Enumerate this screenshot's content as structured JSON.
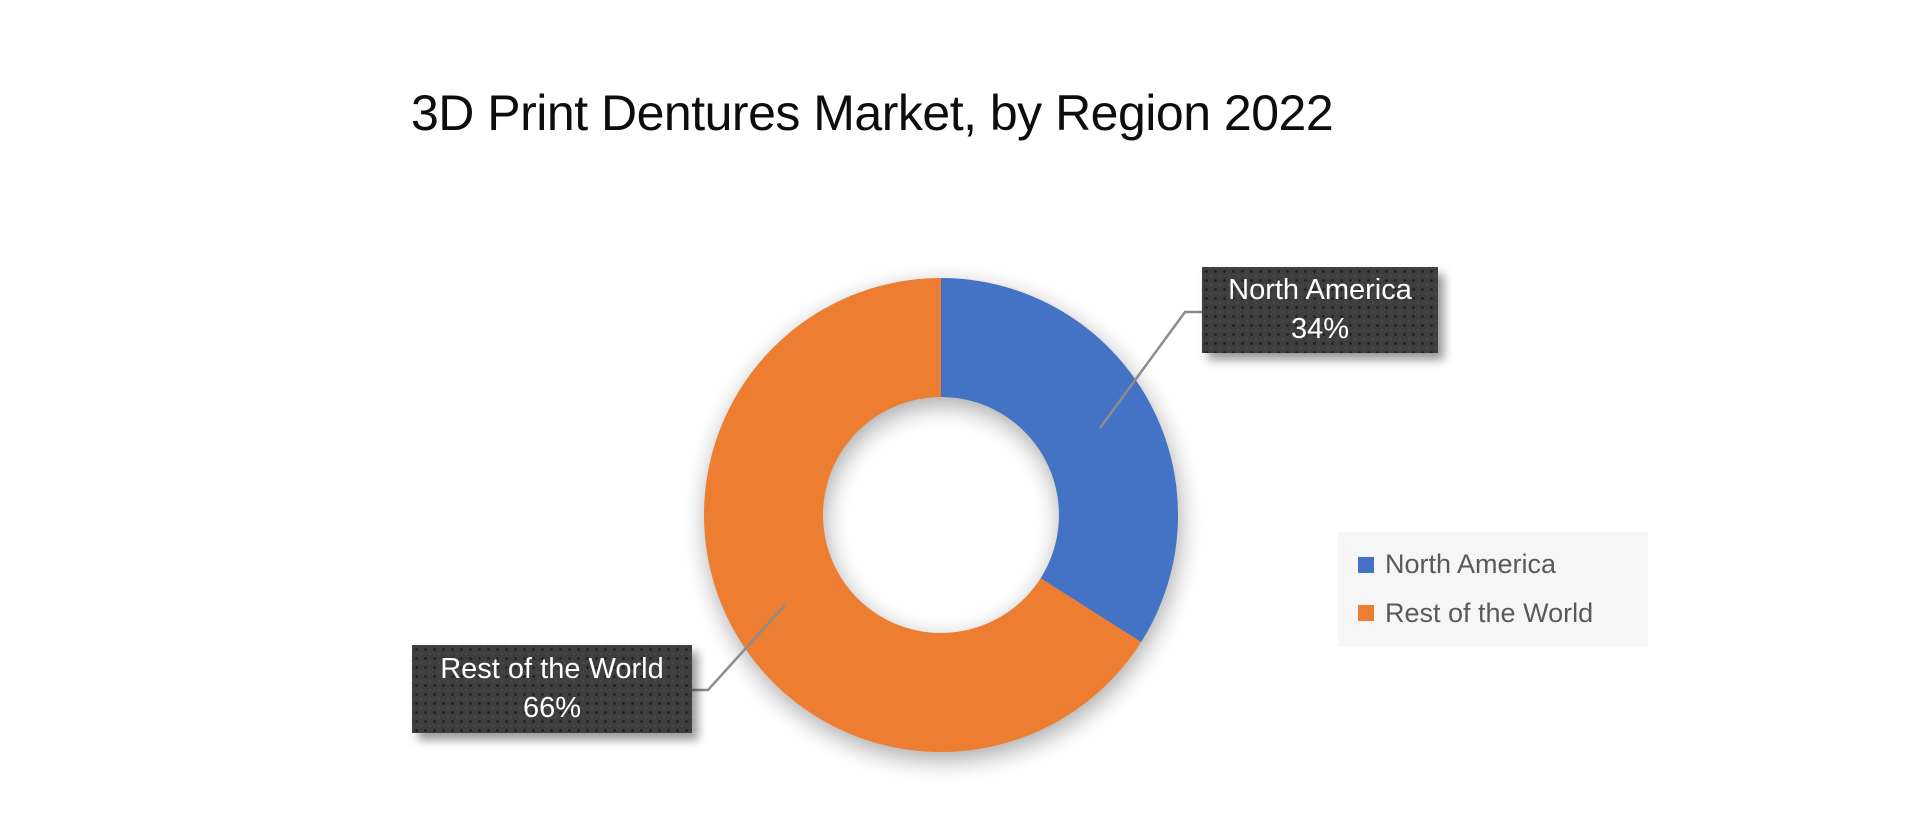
{
  "title": "3D Print Dentures Market, by Region 2022",
  "chart_data": {
    "type": "pie",
    "subtype": "donut",
    "categories": [
      "North America",
      "Rest of the World"
    ],
    "values": [
      34,
      66
    ],
    "colors": [
      "#4472C4",
      "#ED7D31"
    ],
    "start_angle_deg": 0,
    "direction": "clockwise",
    "inner_radius_ratio": 0.5,
    "data_labels": [
      {
        "label": "North America",
        "percent": "34%"
      },
      {
        "label": "Rest of the World",
        "percent": "66%"
      }
    ],
    "legend": {
      "position": "right",
      "items": [
        {
          "label": "North America",
          "color": "#4472C4"
        },
        {
          "label": "Rest of the World",
          "color": "#ED7D31"
        }
      ]
    }
  },
  "style": {
    "title_color": "#0D0D0D",
    "label_box_bg": "#3E3E3E",
    "label_text_color": "#FFFFFF",
    "leader_line_color": "#8C8C8C",
    "legend_text_color": "#595959",
    "legend_panel_bg": "#F6F6F6",
    "page_bg": "#FFFFFF"
  }
}
